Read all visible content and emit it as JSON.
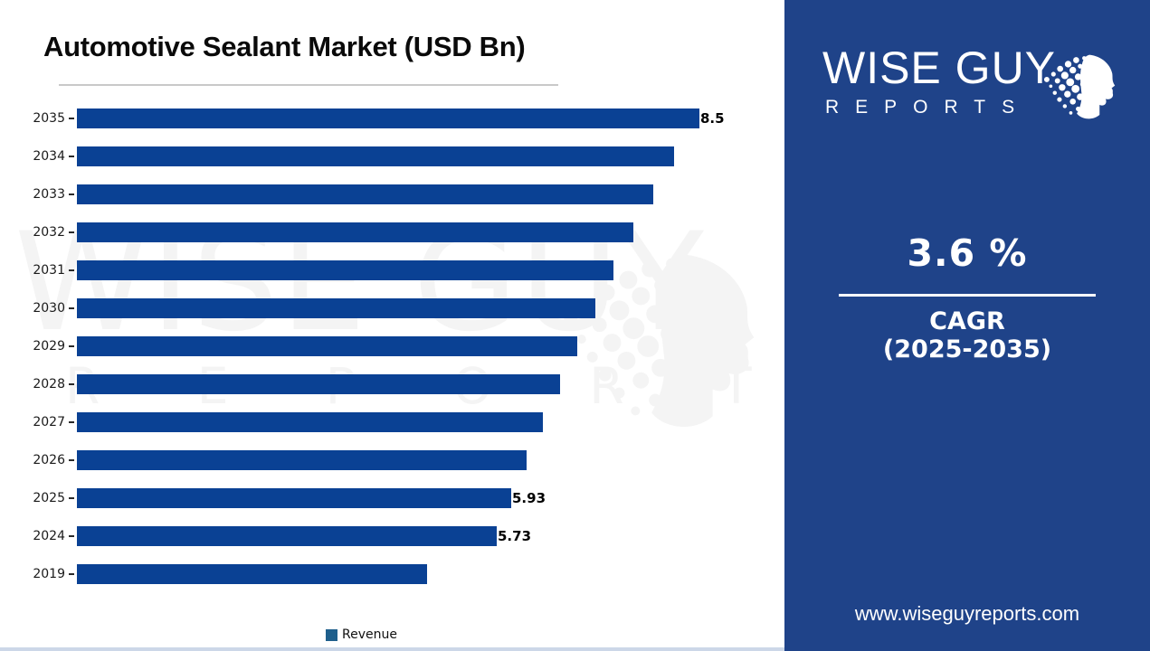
{
  "chart_data": {
    "type": "bar",
    "orientation": "horizontal",
    "title": "Automotive Sealant Market (USD Bn)",
    "value_unit": "USD Bn",
    "categories": [
      "2035",
      "2034",
      "2033",
      "2032",
      "2031",
      "2030",
      "2029",
      "2028",
      "2027",
      "2026",
      "2025",
      "2024",
      "2019"
    ],
    "values": [
      8.5,
      8.16,
      7.87,
      7.6,
      7.33,
      7.08,
      6.83,
      6.6,
      6.36,
      6.14,
      5.93,
      5.73,
      4.78
    ],
    "data_labels": [
      "8.5",
      "",
      "",
      "",
      "",
      "",
      "",
      "",
      "",
      "",
      "5.93",
      "5.73",
      ""
    ],
    "xlim": [
      0,
      8.5
    ],
    "grid": false,
    "bar_color": "#0a4194",
    "legend_position": "bottom-center",
    "legend": [
      {
        "label": "Revenue",
        "color": "#1e5f8c"
      }
    ]
  },
  "watermark": {
    "line1": "WISE GUY",
    "line2": "R E P O R T S"
  },
  "brand_panel": {
    "background_color": "#1f4389",
    "logo_line1": "WISE GUY",
    "logo_line2": "REPORTS",
    "head_icon": "dotted-head-profile",
    "cagr_value": "3.6 %",
    "cagr_title": "CAGR",
    "cagr_range": "(2025-2035)",
    "website": "www.wiseguyreports.com"
  }
}
